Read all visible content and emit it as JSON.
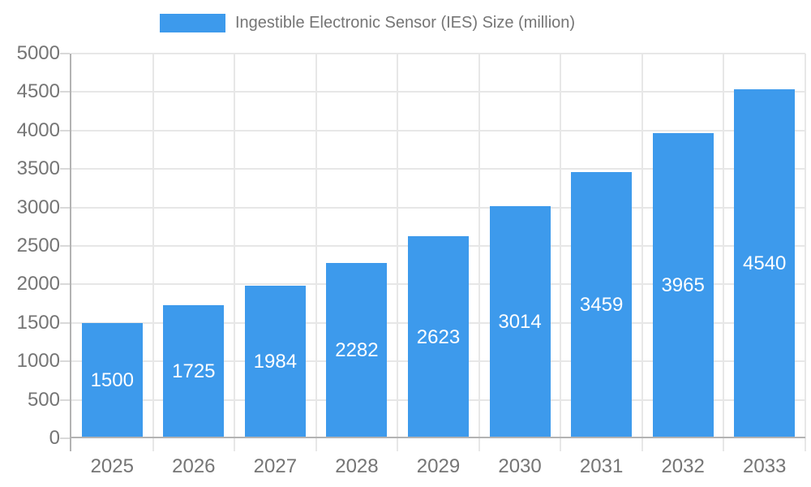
{
  "chart_data": {
    "type": "bar",
    "title": "",
    "legend": {
      "position": "top",
      "entries": [
        {
          "label": "Ingestible Electronic Sensor (IES) Size (million)",
          "color": "#3d9aec"
        }
      ]
    },
    "categories": [
      "2025",
      "2026",
      "2027",
      "2028",
      "2029",
      "2030",
      "2031",
      "2032",
      "2033"
    ],
    "series": [
      {
        "name": "Ingestible Electronic Sensor (IES) Size (million)",
        "values": [
          1500,
          1725,
          1984,
          2282,
          2623,
          3014,
          3459,
          3965,
          4540
        ],
        "color": "#3d9aec"
      }
    ],
    "xlabel": "",
    "ylabel": "",
    "ylim": [
      0,
      5000
    ],
    "ytick_step": 500,
    "yticks": [
      0,
      500,
      1000,
      1500,
      2000,
      2500,
      3000,
      3500,
      4000,
      4500,
      5000
    ],
    "grid": true,
    "value_labels": "inside-center-white"
  },
  "colors": {
    "background": "#ffffff",
    "bar": "#3d9aec",
    "gridline": "#e7e7e7",
    "axis_line": "#b3b3b3",
    "tick": "#d9d9d9",
    "axis_text": "#757575",
    "value_label_text": "#ffffff"
  }
}
